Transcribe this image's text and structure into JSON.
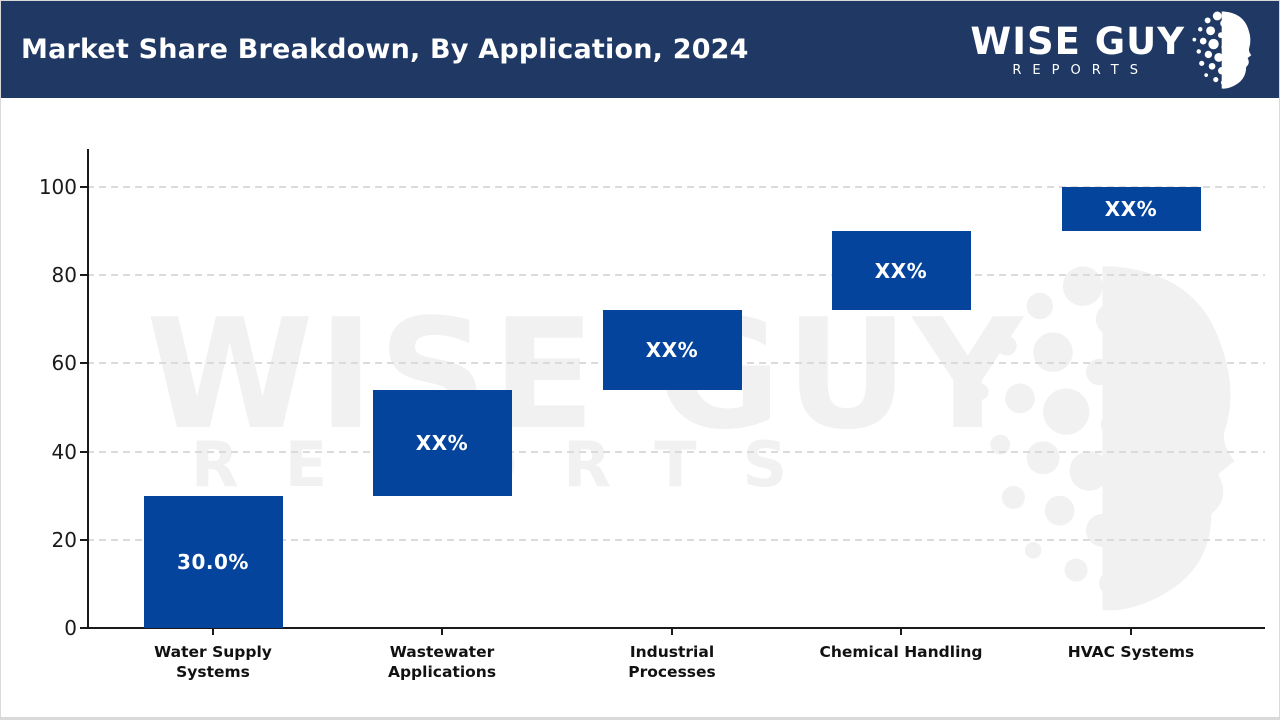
{
  "header": {
    "title": "Market Share Breakdown, By Application, 2024",
    "bg_color": "#1f3864",
    "logo": {
      "line1": "WISE GUY",
      "line2": "REPORTS"
    }
  },
  "watermark": {
    "line1": "WISE GUY",
    "line2": "REPORTS"
  },
  "chart_data": {
    "type": "bar",
    "subtype": "waterfall",
    "title": "Market Share Breakdown, By Application, 2024",
    "xlabel": "",
    "ylabel": "",
    "categories": [
      "Water Supply Systems",
      "Wastewater Applications",
      "Industrial Processes",
      "Chemical Handling",
      "HVAC Systems"
    ],
    "category_lines": [
      [
        "Water Supply",
        "Systems"
      ],
      [
        "Wastewater",
        "Applications"
      ],
      [
        "Industrial",
        "Processes"
      ],
      [
        "Chemical Handling"
      ],
      [
        "HVAC Systems"
      ]
    ],
    "series": [
      {
        "name": "Market Share",
        "segments": [
          {
            "category": "Water Supply Systems",
            "start": 0,
            "end": 30,
            "value": 30,
            "label": "30.0%"
          },
          {
            "category": "Wastewater Applications",
            "start": 30,
            "end": 54,
            "value": 24,
            "label": "XX%"
          },
          {
            "category": "Industrial Processes",
            "start": 54,
            "end": 72,
            "value": 18,
            "label": "XX%"
          },
          {
            "category": "Chemical Handling",
            "start": 72,
            "end": 90,
            "value": 18,
            "label": "XX%"
          },
          {
            "category": "HVAC Systems",
            "start": 90,
            "end": 100,
            "value": 10,
            "label": "XX%"
          }
        ]
      }
    ],
    "yticks": [
      0,
      20,
      40,
      60,
      80,
      100
    ],
    "ylim": [
      0,
      108
    ],
    "grid": "horizontal-dashed",
    "legend": "none",
    "bar_color": "#05449c",
    "bar_label_color": "#ffffff",
    "gridline_color": "#dbdbdb",
    "axis_color": "#1a1a1a"
  }
}
